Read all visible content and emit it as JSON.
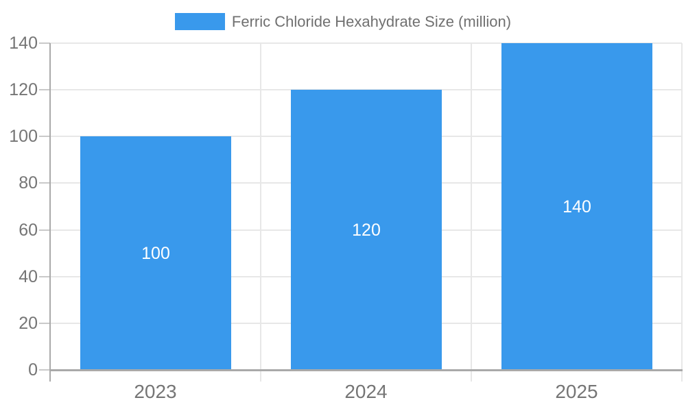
{
  "legend": {
    "label": "Ferric Chloride Hexahydrate Size (million)"
  },
  "chart_data": {
    "type": "bar",
    "title": "Ferric Chloride Hexahydrate Size (million)",
    "categories": [
      "2023",
      "2024",
      "2025"
    ],
    "series": [
      {
        "name": "Ferric Chloride Hexahydrate Size (million)",
        "values": [
          100,
          120,
          140
        ]
      }
    ],
    "values": [
      100,
      120,
      140
    ],
    "bar_labels": [
      "100",
      "120",
      "140"
    ],
    "xlabel": "",
    "ylabel": "",
    "ylim": [
      0,
      140
    ],
    "ytick_step": 20,
    "ytick_labels": [
      "0",
      "20",
      "40",
      "60",
      "80",
      "100",
      "120",
      "140"
    ],
    "grid": true,
    "legend_position": "top",
    "colors": {
      "bar": "#3999EC",
      "grid": "#E7E7E7",
      "axis": "#A9A9A9",
      "tick": "#C9C9C9",
      "text": "#757575",
      "legend_text": "#707070",
      "bar_label": "#FFFFFF",
      "background": "#FFFFFF"
    }
  }
}
